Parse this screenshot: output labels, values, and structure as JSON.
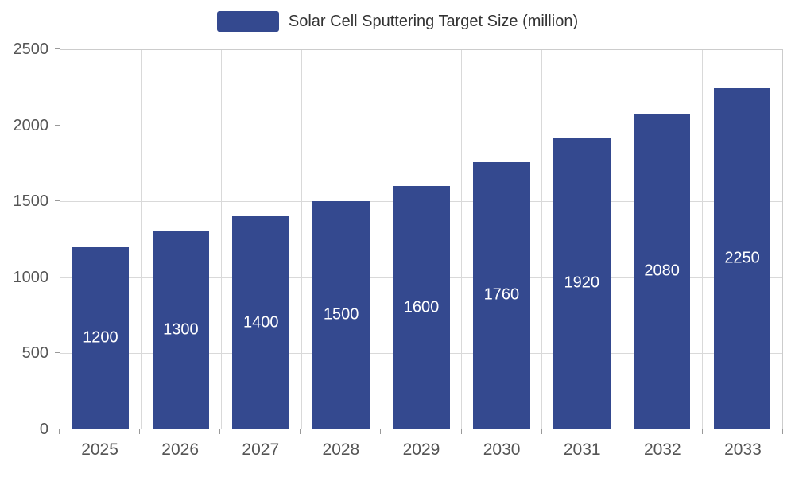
{
  "legend": {
    "label": "Solar Cell Sputtering Target Size (million)"
  },
  "chart_data": {
    "type": "bar",
    "title": "Solar Cell Sputtering Target Size (million)",
    "categories": [
      "2025",
      "2026",
      "2027",
      "2028",
      "2029",
      "2030",
      "2031",
      "2032",
      "2033"
    ],
    "values": [
      1200,
      1300,
      1400,
      1500,
      1600,
      1760,
      1920,
      2080,
      2250
    ],
    "xlabel": "",
    "ylabel": "",
    "ylim": [
      0,
      2500
    ],
    "yticks": [
      0,
      500,
      1000,
      1500,
      2000,
      2500
    ],
    "grid": true,
    "legend_position": "top",
    "bar_color": "#34498f",
    "value_label_color": "#ffffff",
    "axis_text_color": "#555555",
    "grid_color": "#d9d9d9"
  }
}
